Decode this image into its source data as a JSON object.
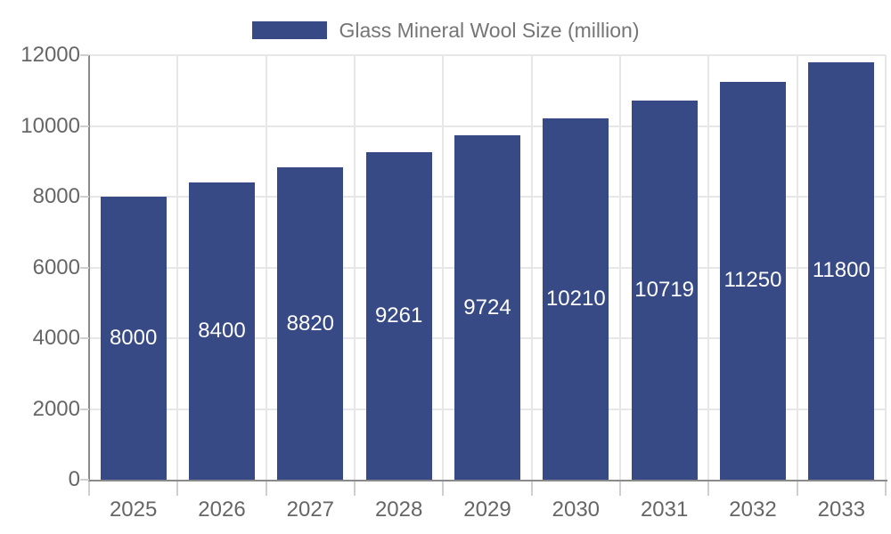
{
  "legend": {
    "label": "Glass Mineral Wool Size (million)"
  },
  "colors": {
    "bar": "#374a85",
    "bar_label": "#ffffff",
    "axis": "#8a8a8a",
    "grid": "#e7e7e7",
    "tick": "#cfcfcf",
    "tick_label": "#666666",
    "legend_text": "#757575",
    "background": "#ffffff"
  },
  "chart_data": {
    "type": "bar",
    "title": "",
    "legend_label": "Glass Mineral Wool Size (million)",
    "categories": [
      "2025",
      "2026",
      "2027",
      "2028",
      "2029",
      "2030",
      "2031",
      "2032",
      "2033"
    ],
    "values": [
      8000,
      8400,
      8820,
      9261,
      9724,
      10210,
      10719,
      11250,
      11800
    ],
    "xlabel": "",
    "ylabel": "",
    "ylim": [
      0,
      12000
    ],
    "yticks": [
      0,
      2000,
      4000,
      6000,
      8000,
      10000,
      12000
    ],
    "grid": true,
    "grid_vertical": true,
    "legend_position": "top-center",
    "bar_labels_inside": true
  }
}
